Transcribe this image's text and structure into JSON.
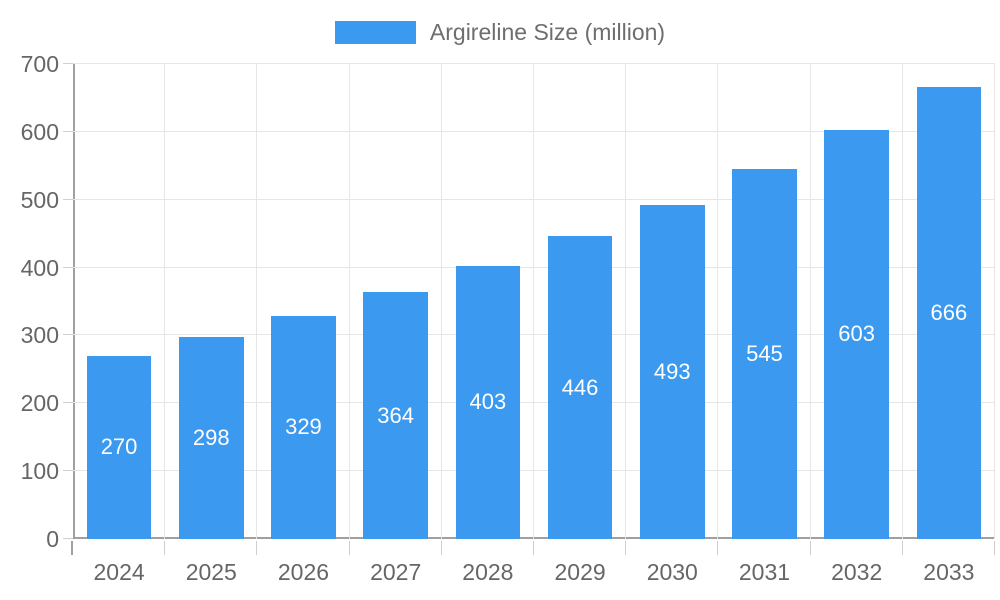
{
  "chart_data": {
    "type": "bar",
    "title": "",
    "categories": [
      "2024",
      "2025",
      "2026",
      "2027",
      "2028",
      "2029",
      "2030",
      "2031",
      "2032",
      "2033"
    ],
    "series": [
      {
        "name": "Argireline Size (million)",
        "values": [
          270,
          298,
          329,
          364,
          403,
          446,
          493,
          545,
          603,
          666
        ],
        "color": "#3b99f0"
      }
    ],
    "xlabel": "",
    "ylabel": "",
    "ylim": [
      0,
      700
    ],
    "ytick_step": 100,
    "ytick_labels": [
      "0",
      "100",
      "200",
      "300",
      "400",
      "500",
      "600",
      "700"
    ],
    "grid": true,
    "grid_vertical": true,
    "legend_position": "top-center",
    "bar_labels_visible": true,
    "colors": {
      "bar": "#3b99f0",
      "grid": "#e6e6e6",
      "axis": "#a0a0a0",
      "text": "#666666",
      "bar_label": "#ffffff"
    }
  }
}
